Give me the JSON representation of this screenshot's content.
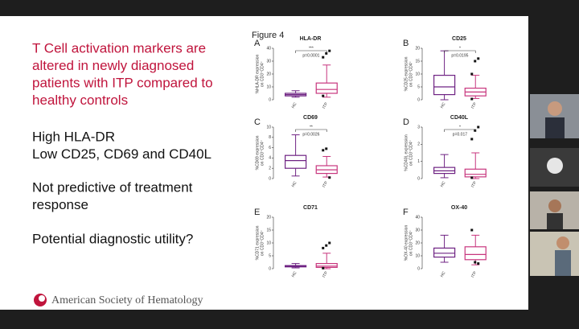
{
  "slide": {
    "title_lines": [
      "T Cell activation markers are",
      "altered in newly diagnosed",
      "patients with ITP compared to",
      "healthy controls"
    ],
    "bullets": [
      [
        "High HLA-DR",
        "Low CD25, CD69 and CD40L"
      ],
      [
        "Not predictive of treatment",
        "response"
      ],
      [
        "Potential diagnostic utility?"
      ]
    ],
    "footer": "American Society of Hematology"
  },
  "figure": {
    "label": "Figure 4",
    "categories": [
      "HC",
      "ITP"
    ],
    "colors": [
      "#6f2383",
      "#c8367e"
    ],
    "panels": [
      {
        "letter": "A",
        "title": "HLA-DR",
        "significance": "***",
        "p_value": "p=0.0001",
        "y_label": [
          "%HLA-DR expression",
          "on CD3⁺CD4⁺"
        ],
        "ylim": [
          0,
          40
        ],
        "yticks": [
          0,
          10,
          20,
          30,
          40
        ],
        "boxes": [
          {
            "min": 2,
            "q1": 3,
            "median": 4,
            "q3": 5,
            "max": 7,
            "outliers": []
          },
          {
            "min": 2,
            "q1": 5,
            "median": 8,
            "q3": 13,
            "max": 27,
            "outliers": [
              33,
              36,
              38,
              3
            ]
          }
        ]
      },
      {
        "letter": "B",
        "title": "CD25",
        "significance": "*",
        "p_value": "p=0.0195",
        "y_label": [
          "%CD25 expression",
          "on CD3⁺CD4⁺"
        ],
        "ylim": [
          0,
          20
        ],
        "yticks": [
          0,
          5,
          10,
          15,
          20
        ],
        "boxes": [
          {
            "min": 0,
            "q1": 2,
            "median": 5,
            "q3": 9.5,
            "max": 19,
            "outliers": []
          },
          {
            "min": 0.5,
            "q1": 1.5,
            "median": 3,
            "q3": 4.5,
            "max": 9.5,
            "outliers": [
              10,
              15,
              16,
              0.3
            ]
          }
        ]
      },
      {
        "letter": "C",
        "title": "CD69",
        "significance": "**",
        "p_value": "p=0.0026",
        "y_label": [
          "%CD69 expression",
          "on CD3⁺CD4⁺"
        ],
        "ylim": [
          0,
          10
        ],
        "yticks": [
          0,
          2,
          4,
          6,
          8,
          10
        ],
        "boxes": [
          {
            "min": 0.5,
            "q1": 2,
            "median": 3.5,
            "q3": 4.5,
            "max": 8.5,
            "outliers": []
          },
          {
            "min": 0.3,
            "q1": 1,
            "median": 1.7,
            "q3": 2.5,
            "max": 4.3,
            "outliers": [
              5.5,
              5.8,
              0.2
            ]
          }
        ]
      },
      {
        "letter": "D",
        "title": "CD40L",
        "significance": "*",
        "p_value": "p=0.017",
        "y_label": [
          "%CD40L expression",
          "on CD3⁺CD4⁺"
        ],
        "ylim": [
          0,
          3
        ],
        "yticks": [
          0,
          1,
          2,
          3
        ],
        "boxes": [
          {
            "min": 0.05,
            "q1": 0.3,
            "median": 0.45,
            "q3": 0.65,
            "max": 1.4,
            "outliers": []
          },
          {
            "min": 0,
            "q1": 0.1,
            "median": 0.25,
            "q3": 0.55,
            "max": 1.5,
            "outliers": [
              2.3,
              2.8,
              3,
              0.05
            ]
          }
        ]
      },
      {
        "letter": "E",
        "title": "CD71",
        "significance": null,
        "p_value": null,
        "y_label": [
          "%CD71 expression",
          "on CD3⁺CD4⁺"
        ],
        "ylim": [
          0,
          20
        ],
        "yticks": [
          0,
          5,
          10,
          15,
          20
        ],
        "boxes": [
          {
            "min": 0.3,
            "q1": 0.7,
            "median": 0.9,
            "q3": 1.2,
            "max": 2,
            "outliers": []
          },
          {
            "min": 0,
            "q1": 0.5,
            "median": 1,
            "q3": 2,
            "max": 6,
            "outliers": [
              8,
              9,
              10,
              0.2
            ]
          }
        ]
      },
      {
        "letter": "F",
        "title": "OX-40",
        "significance": null,
        "p_value": null,
        "y_label": [
          "%OX-40 expression",
          "on CD3⁺CD4⁺"
        ],
        "ylim": [
          0,
          40
        ],
        "yticks": [
          0,
          10,
          20,
          30,
          40
        ],
        "boxes": [
          {
            "min": 5,
            "q1": 9,
            "median": 12,
            "q3": 16,
            "max": 26,
            "outliers": []
          },
          {
            "min": 3,
            "q1": 7,
            "median": 11,
            "q3": 17,
            "max": 26,
            "outliers": [
              30,
              5,
              4
            ]
          }
        ]
      }
    ]
  }
}
